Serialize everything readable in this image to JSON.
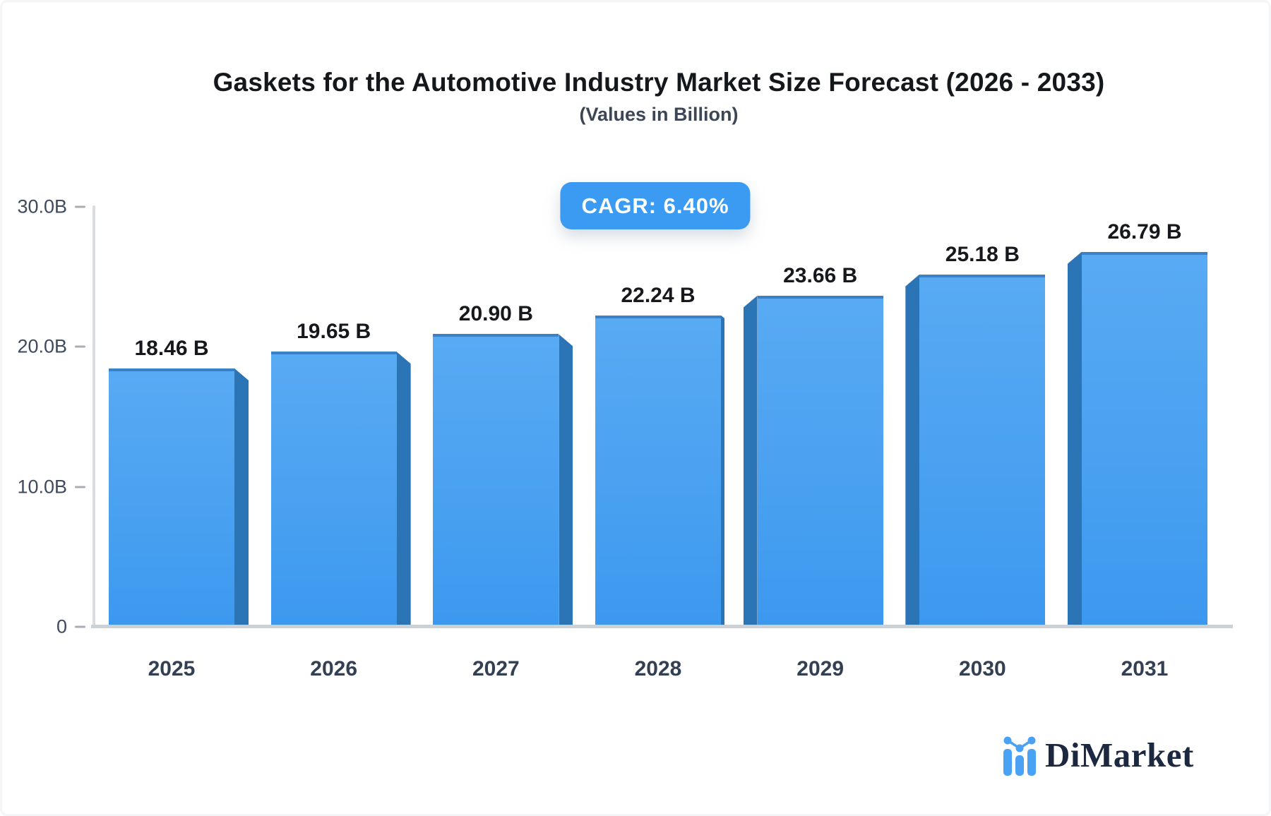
{
  "header": {
    "title": "Gaskets for the Automotive Industry Market Size Forecast (2026 - 2033)",
    "subtitle": "(Values in Billion)"
  },
  "badge": {
    "label": "CAGR: 6.40%",
    "bg_color": "#3b9bf2",
    "text_color": "#ffffff"
  },
  "chart_data": {
    "type": "bar",
    "title": "Gaskets for the Automotive Industry Market Size Forecast (2026 - 2033)",
    "subtitle": "(Values in Billion)",
    "xlabel": "",
    "ylabel": "",
    "categories": [
      "2025",
      "2026",
      "2027",
      "2028",
      "2029",
      "2030",
      "2031"
    ],
    "values": [
      18.46,
      19.65,
      20.9,
      22.24,
      23.66,
      25.18,
      26.79
    ],
    "value_labels": [
      "18.46 B",
      "19.65 B",
      "20.90 B",
      "22.24 B",
      "23.66 B",
      "25.18 B",
      "26.79 B"
    ],
    "ylim": [
      0,
      30
    ],
    "y_ticks": [
      {
        "label": "30.0B",
        "value": 30
      },
      {
        "label": "20.0B",
        "value": 20
      },
      {
        "label": "10.0B",
        "value": 10
      },
      {
        "label": "0",
        "value": 0
      }
    ],
    "grid": false,
    "legend": "none",
    "bar_face_color": "#4aa1f1",
    "bar_side_color": "#2b74b6",
    "bar_top_edge_color": "#3a82c8",
    "axis_color": "#d9dce1",
    "tick_color": "#a9adb5"
  },
  "logo": {
    "text": "DiMarket",
    "icon": "bar-line-chart-icon",
    "accent_color": "#4aa2f5",
    "text_color": "#1c2840"
  }
}
